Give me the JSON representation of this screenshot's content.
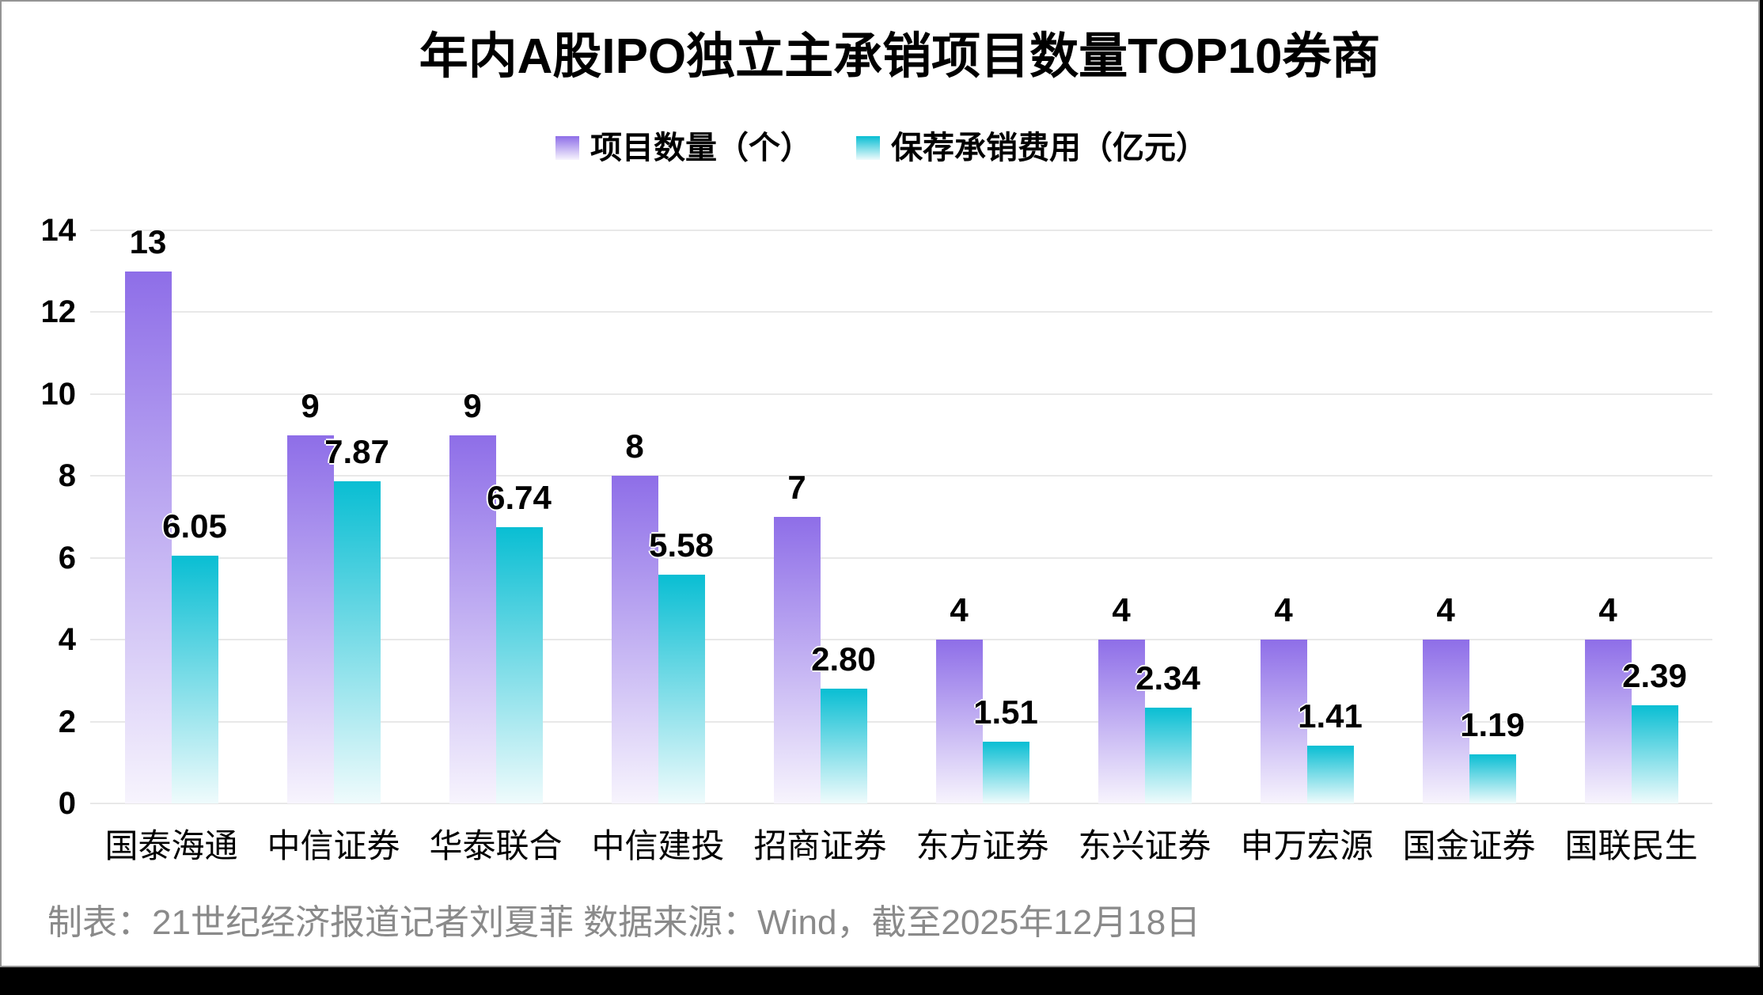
{
  "title": "年内A股IPO独立主承销项目数量TOP10券商",
  "footer": "制表：21世纪经济报道记者刘夏菲 数据来源：Wind，截至2025年12月18日",
  "legend": [
    {
      "label": "项目数量（个）",
      "color_top": "#8E6EE8",
      "color_bottom": "#F7F4FD"
    },
    {
      "label": "保荐承销费用（亿元）",
      "color_top": "#09BED3",
      "color_bottom": "#EFFBFC"
    }
  ],
  "colors": {
    "projects_purple": "#8E6EE8",
    "fees_teal": "#09BED3",
    "gridline": "#e8e8e8",
    "footer_gray": "#8a8a8a"
  },
  "chart_data": {
    "type": "bar",
    "title": "年内A股IPO独立主承销项目数量TOP10券商",
    "categories": [
      "国泰海通",
      "中信证券",
      "华泰联合",
      "中信建投",
      "招商证券",
      "东方证券",
      "东兴证券",
      "申万宏源",
      "国金证券",
      "国联民生"
    ],
    "series": [
      {
        "name": "项目数量（个）",
        "values": [
          13,
          9,
          9,
          8,
          7,
          4,
          4,
          4,
          4,
          4
        ],
        "labels": [
          "13",
          "9",
          "9",
          "8",
          "7",
          "4",
          "4",
          "4",
          "4",
          "4"
        ],
        "color_top": "#8E6EE8",
        "color_bottom": "#F7F4FD"
      },
      {
        "name": "保荐承销费用（亿元）",
        "values": [
          6.05,
          7.87,
          6.74,
          5.58,
          2.8,
          1.51,
          2.34,
          1.41,
          1.19,
          2.39
        ],
        "labels": [
          "6.05",
          "7.87",
          "6.74",
          "5.58",
          "2.80",
          "1.51",
          "2.34",
          "1.41",
          "1.19",
          "2.39"
        ],
        "color_top": "#09BED3",
        "color_bottom": "#EFFBFC"
      }
    ],
    "xlabel": "",
    "ylabel": "",
    "ylim": [
      0,
      14
    ],
    "yticks": [
      0,
      2,
      4,
      6,
      8,
      10,
      12,
      14
    ],
    "grid": true,
    "legend_position": "top"
  }
}
